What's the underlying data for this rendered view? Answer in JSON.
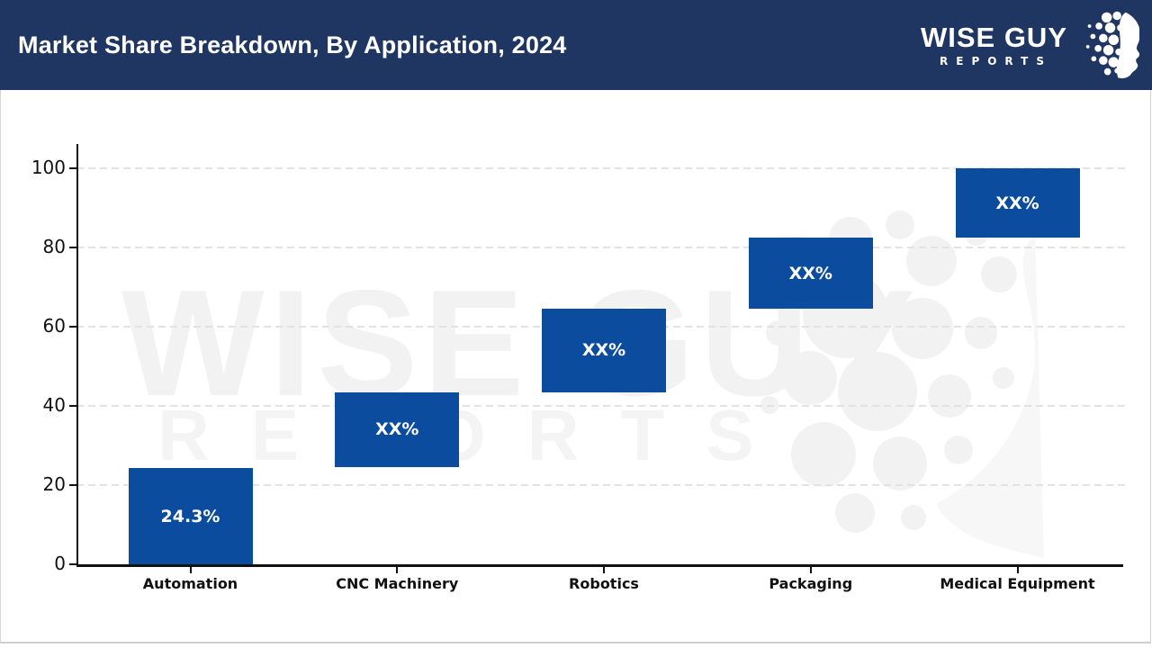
{
  "header": {
    "title": "Market Share Breakdown, By Application, 2024",
    "logo_line1": "WISE GUY",
    "logo_line2": "REPORTS"
  },
  "watermark": {
    "line1": "WISE GUY",
    "line2": "REPORTS"
  },
  "chart_data": {
    "type": "bar",
    "subtype": "waterfall",
    "title": "Market Share Breakdown, By Application, 2024",
    "categories": [
      "Automation",
      "CNC Machinery",
      "Robotics",
      "Packaging",
      "Medical Equipment"
    ],
    "segments": [
      {
        "category": "Automation",
        "start": 0,
        "end": 24.3,
        "label": "24.3%"
      },
      {
        "category": "CNC Machinery",
        "start": 24.5,
        "end": 43.5,
        "label": "XX%"
      },
      {
        "category": "Robotics",
        "start": 43.5,
        "end": 64.5,
        "label": "XX%"
      },
      {
        "category": "Packaging",
        "start": 64.5,
        "end": 82.5,
        "label": "XX%"
      },
      {
        "category": "Medical Equipment",
        "start": 82.5,
        "end": 100,
        "label": "XX%"
      }
    ],
    "xlabel": "",
    "ylabel": "",
    "y_ticks": [
      0,
      20,
      40,
      60,
      80,
      100
    ],
    "ylim": [
      0,
      105
    ],
    "grid": "horizontal-dashed",
    "legend": "none",
    "bar_color": "#0b4c9f",
    "bar_label_color": "#ffffff",
    "axis_color": "#111111",
    "grid_color": "#e2e2e2"
  },
  "colors": {
    "header_bg": "#203662",
    "watermark": "#f2f2f2"
  }
}
